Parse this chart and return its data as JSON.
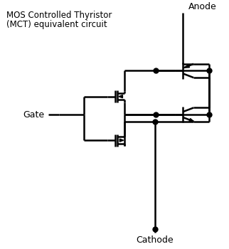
{
  "title_line1": "MOS Controlled Thyristor",
  "title_line2": "(MCT) equivalent circuit",
  "anode_label": "Anode",
  "cathode_label": "Cathode",
  "gate_label": "Gate",
  "bg_color": "#ffffff",
  "fig_width": 3.22,
  "fig_height": 3.5
}
